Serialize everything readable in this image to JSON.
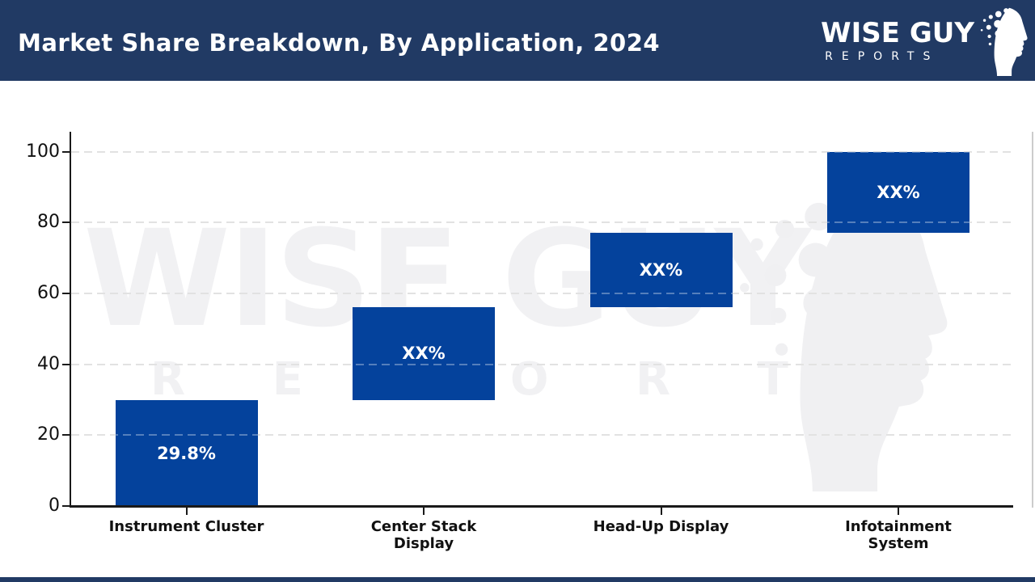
{
  "header": {
    "title": "Market Share Breakdown, By Application, 2024",
    "logo": {
      "line1": "WISE GUY",
      "line2": "REPORTS"
    }
  },
  "watermark": {
    "line1": "WISE GUY",
    "line2": "R E P O R T S"
  },
  "colors": {
    "header_bg": "#213a64",
    "footer_bg": "#213a64",
    "bar_fill": "#04429c",
    "bar_label_text": "#ffffff",
    "axis_line": "#1a1a1a",
    "gridline": "#d4d4d4",
    "watermark": "#f1f1f3",
    "title_text": "#ffffff"
  },
  "chart_data": {
    "type": "bar",
    "subtype": "waterfall-stacked-share",
    "title": "Market Share Breakdown, By Application, 2024",
    "categories": [
      "Instrument Cluster",
      "Center Stack Display",
      "Head-Up Display",
      "Infotainment System"
    ],
    "category_label_lines": [
      [
        "Instrument Cluster"
      ],
      [
        "Center Stack",
        "Display"
      ],
      [
        "Head-Up Display"
      ],
      [
        "Infotainment",
        "System"
      ]
    ],
    "segments": [
      {
        "category": "Instrument Cluster",
        "start": 0,
        "end": 29.8,
        "label": "29.8%"
      },
      {
        "category": "Center Stack Display",
        "start": 29.8,
        "end": 56.2,
        "label": "XX%"
      },
      {
        "category": "Head-Up Display",
        "start": 56.2,
        "end": 77.0,
        "label": "XX%"
      },
      {
        "category": "Infotainment System",
        "start": 77.0,
        "end": 100.0,
        "label": "XX%"
      }
    ],
    "xlabel": "",
    "ylabel": "",
    "ylim": [
      0,
      100
    ],
    "yticks": [
      0,
      20,
      40,
      60,
      80,
      100
    ],
    "ytick_labels": [
      "0",
      "20",
      "40",
      "60",
      "80",
      "100"
    ],
    "grid": "horizontal-dashed",
    "legend": "none"
  }
}
